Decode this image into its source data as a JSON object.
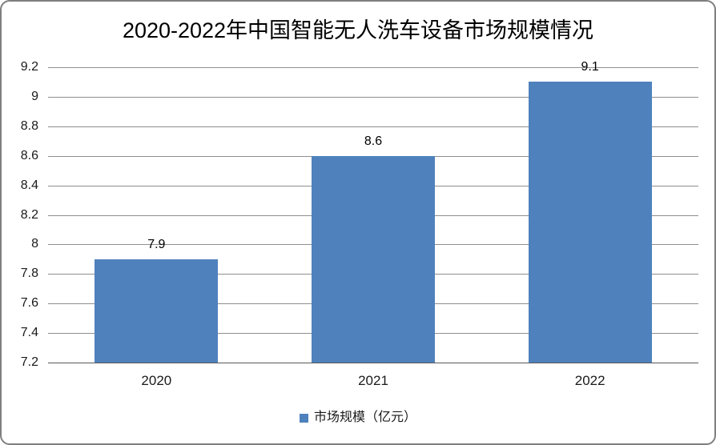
{
  "chart_data": {
    "type": "bar",
    "title": "2020-2022年中国智能无人洗车设备市场规模情况",
    "categories": [
      "2020",
      "2021",
      "2022"
    ],
    "series": [
      {
        "name": "市场规模（亿元）",
        "values": [
          7.9,
          8.6,
          9.1
        ]
      }
    ],
    "value_labels": [
      "7.9",
      "8.6",
      "9.1"
    ],
    "xlabel": "",
    "ylabel": "",
    "ylim": [
      7.2,
      9.2
    ],
    "ytick_step": 0.2,
    "yticks": [
      "9.2",
      "9",
      "8.8",
      "8.6",
      "8.4",
      "8.2",
      "8",
      "7.8",
      "7.6",
      "7.4",
      "7.2"
    ],
    "grid": true,
    "legend_position": "bottom",
    "bar_width_fraction": 0.57
  },
  "colors": {
    "bar": "#4F81BD",
    "gridline": "#8E8E8E",
    "axis_line": "#595959",
    "frame_border": "#7F7F7F",
    "background": "#FFFFFF",
    "text": "#000000"
  }
}
